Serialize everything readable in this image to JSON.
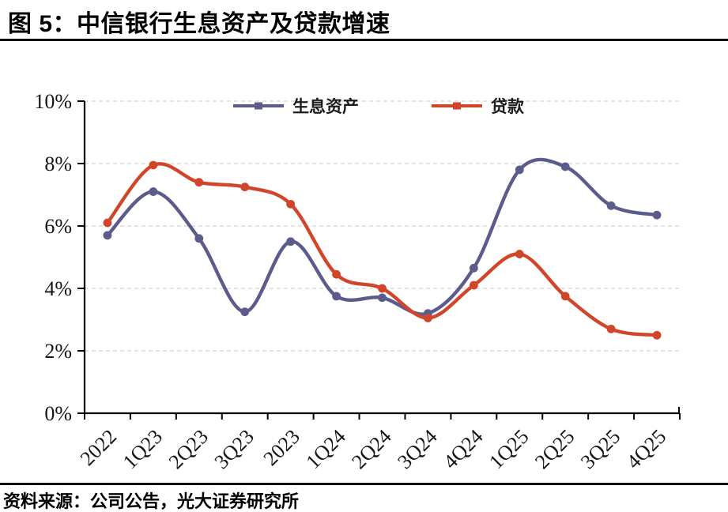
{
  "title": "图 5：中信银行生息资产及贷款增速",
  "source": "资料来源：公司公告，光大证券研究所",
  "colors": {
    "assets": "#5b5b8c",
    "loans": "#d1462b",
    "grid": "#dcdcdc",
    "axis": "#000000"
  },
  "chart_data": {
    "type": "line",
    "title": "中信银行生息资产及贷款增速",
    "categories": [
      "2022",
      "1Q23",
      "2Q23",
      "3Q23",
      "2023",
      "1Q24",
      "2Q24",
      "3Q24",
      "4Q24",
      "1Q25",
      "2Q25",
      "3Q25",
      "4Q25"
    ],
    "series": [
      {
        "name": "生息资产",
        "color_key": "assets",
        "values": [
          5.7,
          7.1,
          5.6,
          3.25,
          5.5,
          3.75,
          3.7,
          3.2,
          4.65,
          7.8,
          7.9,
          6.65,
          6.35
        ]
      },
      {
        "name": "贷款",
        "color_key": "loans",
        "values": [
          6.1,
          7.95,
          7.4,
          7.25,
          6.7,
          4.45,
          4.0,
          3.05,
          4.1,
          5.1,
          3.75,
          2.7,
          2.5
        ]
      }
    ],
    "unit": "%",
    "ylim": [
      0,
      10
    ],
    "y_ticks": [
      0,
      2,
      4,
      6,
      8,
      10
    ],
    "y_tick_labels": [
      "0%",
      "2%",
      "4%",
      "6%",
      "8%",
      "10%"
    ],
    "grid": "dashed-horizontal",
    "legend_position": "top-center",
    "smooth": true,
    "marker": "dot"
  }
}
